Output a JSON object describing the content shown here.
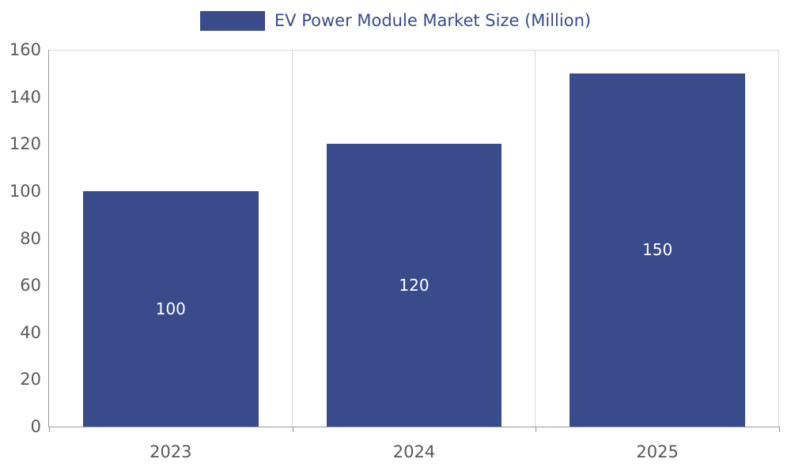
{
  "chart_data": {
    "type": "bar",
    "title": "EV Power Module Market Size (Million)",
    "categories": [
      "2023",
      "2024",
      "2025"
    ],
    "series": [
      {
        "name": "EV Power Module Market Size (Million)",
        "values": [
          100,
          120,
          150
        ]
      }
    ],
    "xlabel": "",
    "ylabel": "",
    "ylim": [
      0,
      160
    ],
    "yticks": [
      0,
      20,
      40,
      60,
      80,
      100,
      120,
      140,
      160
    ],
    "grid": "vertical-split-lines",
    "legend_position": "top-center",
    "data_labels": [
      "100",
      "120",
      "150"
    ],
    "data_label_position": "inside-center",
    "colors": {
      "bar": "#3A4B8C",
      "title_text": "#3A4B8C",
      "axis_line": "#9a9a9a",
      "gridline": "#d9d9d9",
      "tick_text": "#595959",
      "value_text": "#ffffff",
      "background": "#ffffff"
    }
  },
  "legend": {
    "label": "EV Power Module Market Size (Million)"
  }
}
